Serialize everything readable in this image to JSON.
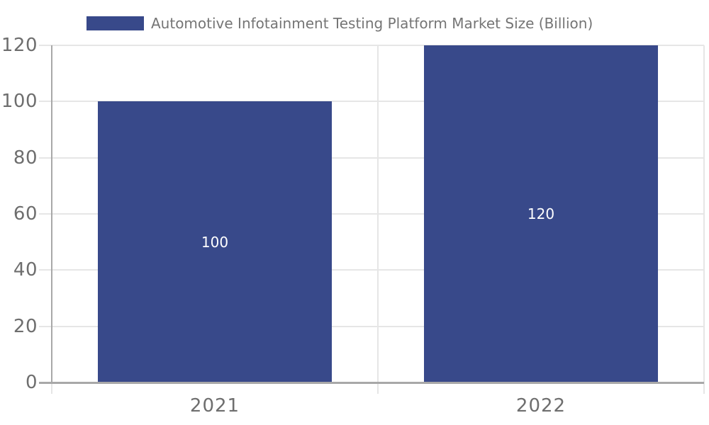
{
  "legend": {
    "label": "Automotive Infotainment Testing Platform Market Size (Billion)"
  },
  "chart_data": {
    "type": "bar",
    "title": "Automotive Infotainment Testing Platform Market Size (Billion)",
    "categories": [
      "2021",
      "2022"
    ],
    "values": [
      100,
      120
    ],
    "data_labels": [
      "100",
      "120"
    ],
    "series_name": "Automotive Infotainment Testing Platform Market Size (Billion)",
    "xlabel": "",
    "ylabel": "",
    "ylim": [
      0,
      120
    ],
    "yticks": [
      0,
      20,
      40,
      60,
      80,
      100,
      120
    ],
    "grid": true,
    "legend_position": "top",
    "colors": {
      "bar": "#38498A",
      "grid": "#E6E6E6",
      "axis": "#A8A8A8",
      "tick_label": "#6E6E6E",
      "legend_text": "#757575",
      "value_label": "#FFFFFF",
      "background": "#FFFFFF"
    }
  }
}
